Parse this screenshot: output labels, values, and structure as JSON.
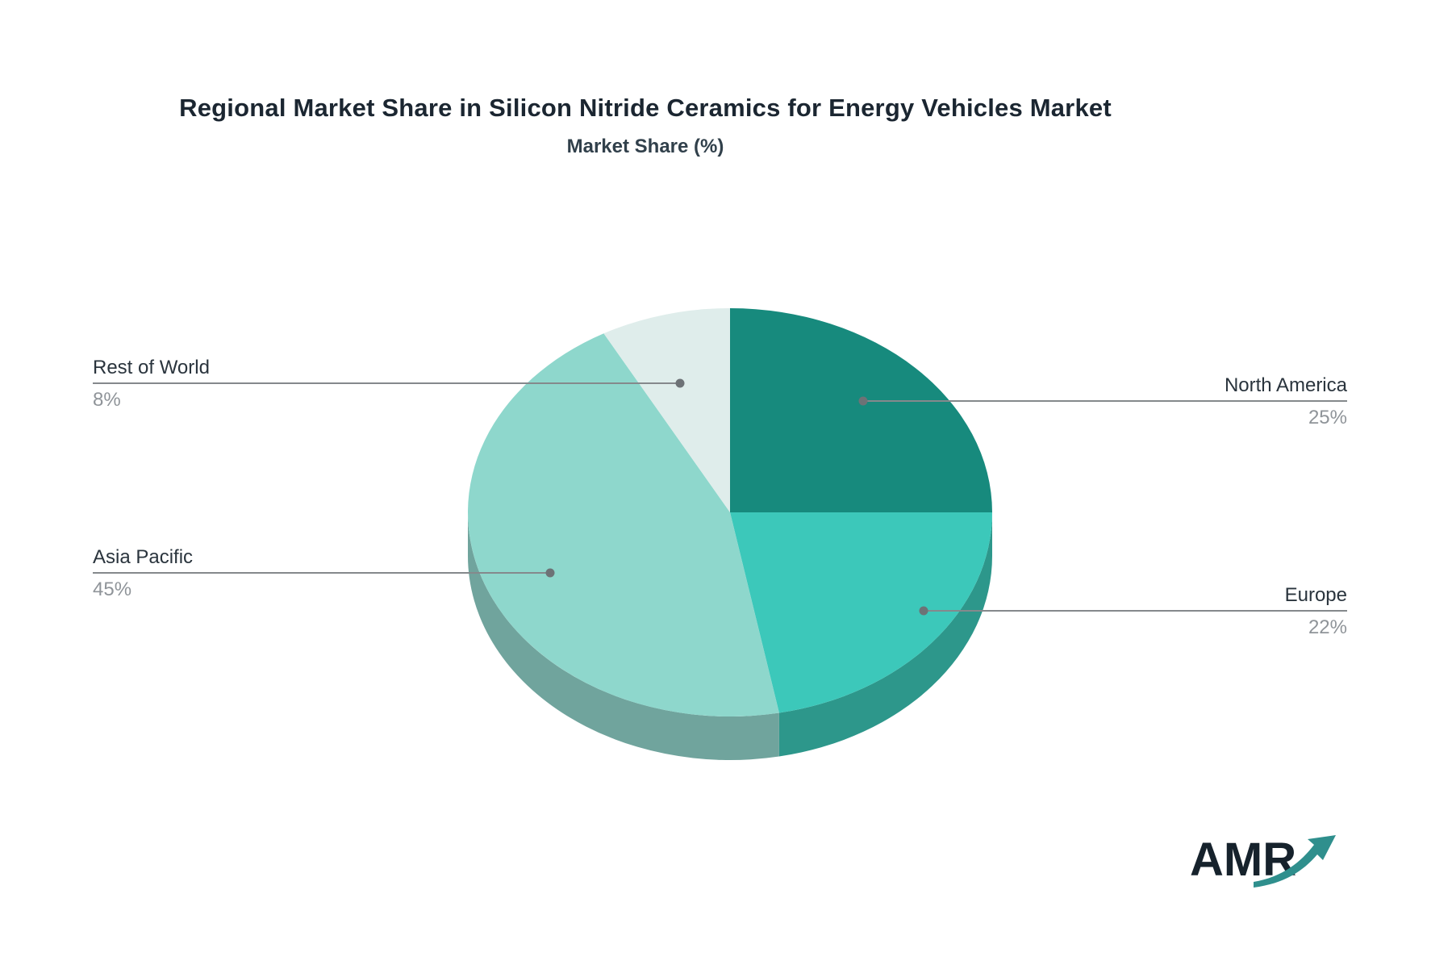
{
  "header": {
    "title": "Regional Market Share in Silicon Nitride Ceramics for Energy Vehicles Market",
    "subtitle": "Market Share (%)"
  },
  "chart_data": {
    "type": "pie",
    "style": "3d",
    "title": "Regional Market Share in Silicon Nitride Ceramics for Energy Vehicles Market",
    "subtitle": "Market Share (%)",
    "unit": "percent",
    "direction": "clockwise",
    "start_angle": "12-oclock",
    "legend_position": "none",
    "labels": "callout-lines",
    "slices": [
      {
        "label": "North America",
        "value": 25,
        "display": "25%",
        "color": "#178a7d"
      },
      {
        "label": "Europe",
        "value": 22,
        "display": "22%",
        "color": "#3cc8ba",
        "side_color": "#2d978b"
      },
      {
        "label": "Asia Pacific",
        "value": 45,
        "display": "45%",
        "color": "#8ed7cc",
        "side_color": "#70a49d"
      },
      {
        "label": "Rest of World",
        "value": 8,
        "display": "8%",
        "color": "#dfedeb"
      }
    ]
  },
  "logo": {
    "text": "AMR",
    "arrow_color": "#2f8f8d"
  },
  "colors": {
    "leader_line": "#85898c",
    "dot": "#6d7276",
    "label_text": "#2a343d",
    "pct_text": "#8f9499"
  }
}
